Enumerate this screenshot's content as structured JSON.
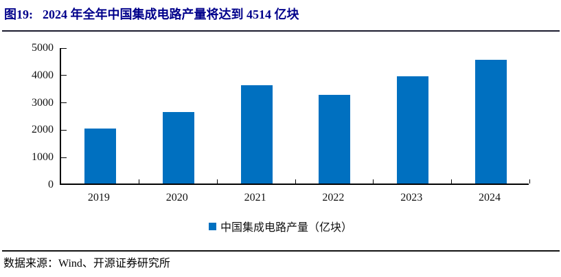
{
  "header": {
    "figure_label": "图19:",
    "title": "2024 年全年中国集成电路产量将达到 4514 亿块"
  },
  "chart_data": {
    "type": "bar",
    "categories": [
      "2019",
      "2020",
      "2021",
      "2022",
      "2023",
      "2024"
    ],
    "values": [
      2018,
      2613,
      3594,
      3242,
      3932,
      4514
    ],
    "series": [
      {
        "name": "中国集成电路产量（亿块）",
        "values": [
          2018,
          2613,
          3594,
          3242,
          3932,
          4514
        ]
      }
    ],
    "title": "2024 年全年中国集成电路产量将达到 4514 亿块",
    "xlabel": "",
    "ylabel": "",
    "ylim": [
      0,
      5000
    ],
    "yticks": [
      0,
      1000,
      2000,
      3000,
      4000,
      5000
    ],
    "grid": false,
    "legend_position": "bottom",
    "legend_label": "中国集成电路产量（亿块）",
    "bar_color": "#0070C0"
  },
  "footer": {
    "source": "数据来源：Wind、开源证券研究所"
  },
  "colors": {
    "bar": "#0070C0",
    "title": "#00008B",
    "axis": "#000000"
  }
}
